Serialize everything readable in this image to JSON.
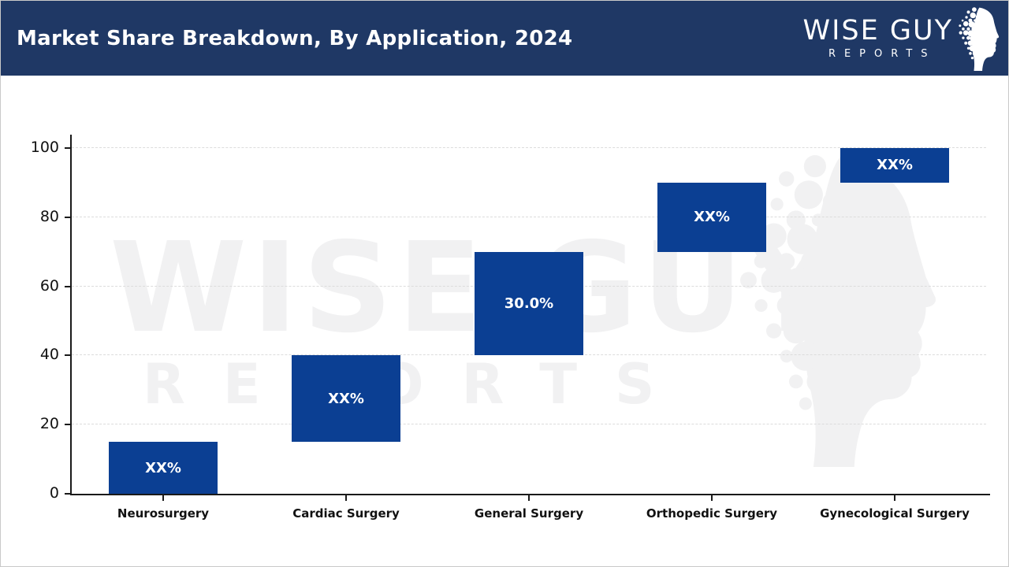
{
  "header": {
    "title": "Market Share Breakdown, By Application, 2024",
    "logo": {
      "line1": "WISE GUY",
      "line2": "REPORTS"
    }
  },
  "watermark": {
    "line1": "WISE GUY",
    "line2": "REPORTS"
  },
  "colors": {
    "header_bg": "#1f3865",
    "bar": "#0b3f93",
    "bar_label": "#ffffff",
    "axis": "#1a1a1a",
    "gridline": "#dcdcdc",
    "watermark": "#f1f1f2",
    "page_bg": "#ffffff"
  },
  "chart_data": {
    "type": "bar",
    "variant": "waterfall",
    "title": "Market Share Breakdown, By Application, 2024",
    "categories": [
      "Neurosurgery",
      "Cardiac Surgery",
      "General Surgery",
      "Orthopedic Surgery",
      "Gynecological Surgery"
    ],
    "bars": [
      {
        "category": "Neurosurgery",
        "start": 0,
        "end": 15,
        "value": 15,
        "label": "XX%"
      },
      {
        "category": "Cardiac Surgery",
        "start": 15,
        "end": 40,
        "value": 25,
        "label": "XX%"
      },
      {
        "category": "General Surgery",
        "start": 40,
        "end": 70,
        "value": 30,
        "label": "30.0%"
      },
      {
        "category": "Orthopedic Surgery",
        "start": 70,
        "end": 90,
        "value": 20,
        "label": "XX%"
      },
      {
        "category": "Gynecological Surgery",
        "start": 90,
        "end": 100,
        "value": 10,
        "label": "XX%"
      }
    ],
    "xlabel": "",
    "ylabel": "",
    "ylim": [
      0,
      104
    ],
    "yticks": [
      0,
      20,
      40,
      60,
      80,
      100
    ],
    "grid": "horizontal-dashed",
    "legend": "none"
  }
}
